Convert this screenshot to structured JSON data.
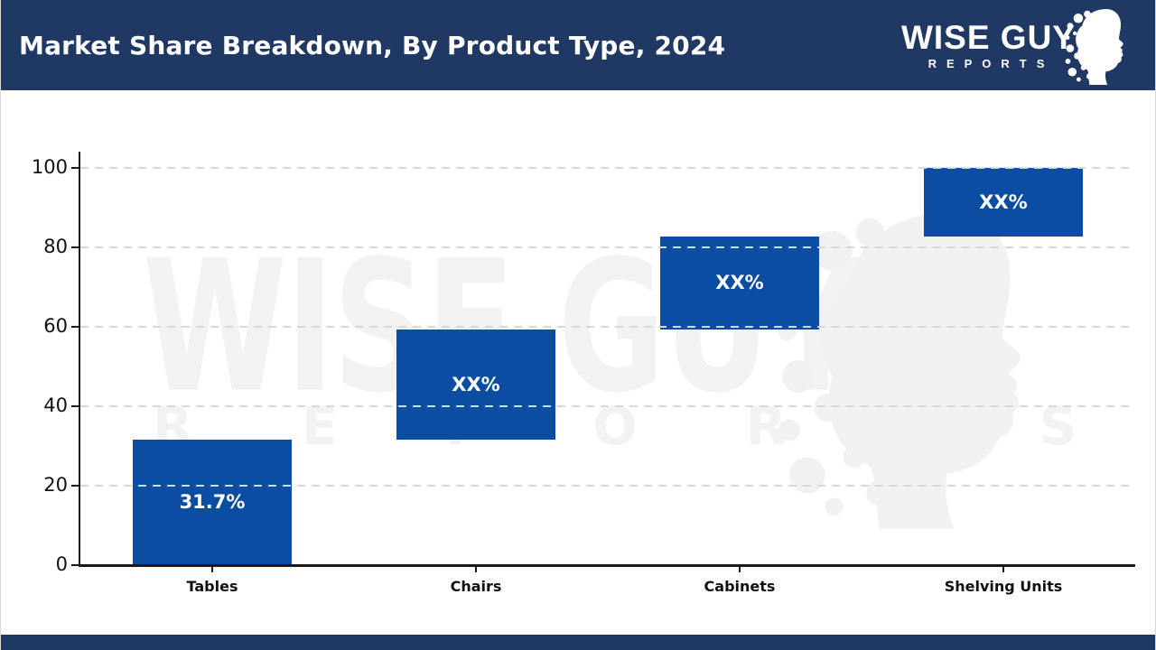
{
  "header": {
    "title": "Market Share Breakdown, By Product Type, 2024",
    "bg_color": "#1f3864",
    "logo": {
      "line1": "WISE GUY",
      "line2": "REPORTS",
      "icon": "dotted-face-profile"
    }
  },
  "watermark": {
    "line1": "WISE GUY",
    "line2": "R E P O R T S",
    "icon": "dotted-face-profile"
  },
  "footer": {
    "bg_color": "#1f3864"
  },
  "colors": {
    "bar": "#0b4da2",
    "bar_label": "#ffffff",
    "axis": "#1a1a1a",
    "grid": "#d8d8d8",
    "watermark": "#f2f2f2"
  },
  "chart_data": {
    "type": "bar",
    "variant": "waterfall-floating-bars",
    "title": "Market Share Breakdown, By Product Type, 2024",
    "xlabel": "",
    "ylabel": "",
    "categories": [
      "Tables",
      "Chairs",
      "Cabinets",
      "Shelving Units"
    ],
    "segments": [
      {
        "category": "Tables",
        "start": 0,
        "end": 31.7,
        "label": "31.7%"
      },
      {
        "category": "Chairs",
        "start": 31.7,
        "end": 59.4,
        "label": "XX%"
      },
      {
        "category": "Cabinets",
        "start": 59.4,
        "end": 82.7,
        "label": "XX%"
      },
      {
        "category": "Shelving Units",
        "start": 82.7,
        "end": 100,
        "label": "XX%"
      }
    ],
    "ylim": [
      0,
      100
    ],
    "yticks": [
      0,
      20,
      40,
      60,
      80,
      100
    ],
    "grid": {
      "axis": "y",
      "style": "dashed",
      "above_bars": true
    },
    "legend": "none",
    "bar_color": "#0b4da2"
  }
}
